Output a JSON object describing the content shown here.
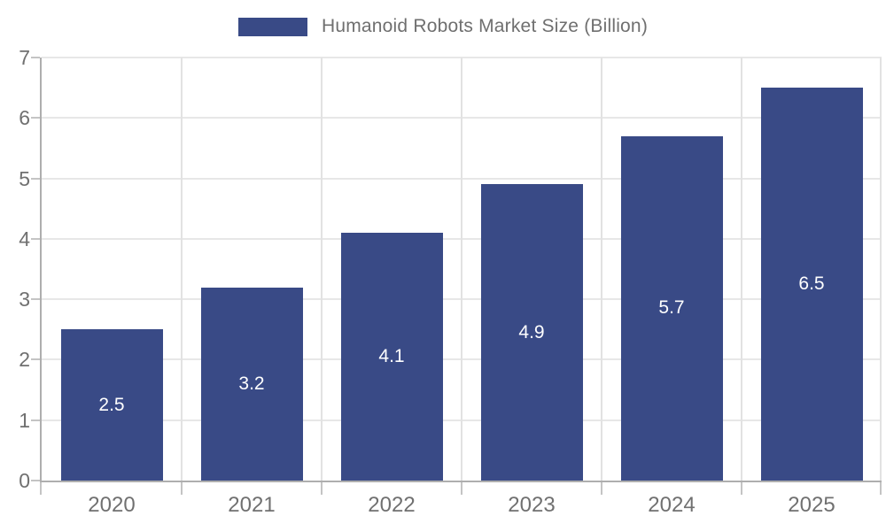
{
  "legend": {
    "label": "Humanoid Robots Market Size (Billion)"
  },
  "colors": {
    "bar": "#394a86",
    "grid_horizontal": "#e7e7e7",
    "grid_vertical": "#e2e2e2",
    "axis_line": "#aeaeae",
    "tick": "#c4c4c4",
    "axis_label_text": "#707070",
    "legend_text": "#6f6f6f",
    "value_label_text": "#ffffff",
    "background": "#ffffff"
  },
  "chart_data": {
    "type": "bar",
    "title": "",
    "xlabel": "",
    "ylabel": "",
    "categories": [
      "2020",
      "2021",
      "2022",
      "2023",
      "2024",
      "2025"
    ],
    "series": [
      {
        "name": "Humanoid Robots Market Size (Billion)",
        "values": [
          2.5,
          3.2,
          4.1,
          4.9,
          5.7,
          6.5
        ]
      }
    ],
    "value_labels": [
      "2.5",
      "3.2",
      "4.1",
      "4.9",
      "5.7",
      "6.5"
    ],
    "value_label_position": "inside-center",
    "ylim": [
      0,
      7
    ],
    "yticks": [
      0,
      1,
      2,
      3,
      4,
      5,
      6,
      7
    ],
    "grid": "horizontal and vertical category boundaries",
    "legend_position": "top-center"
  }
}
